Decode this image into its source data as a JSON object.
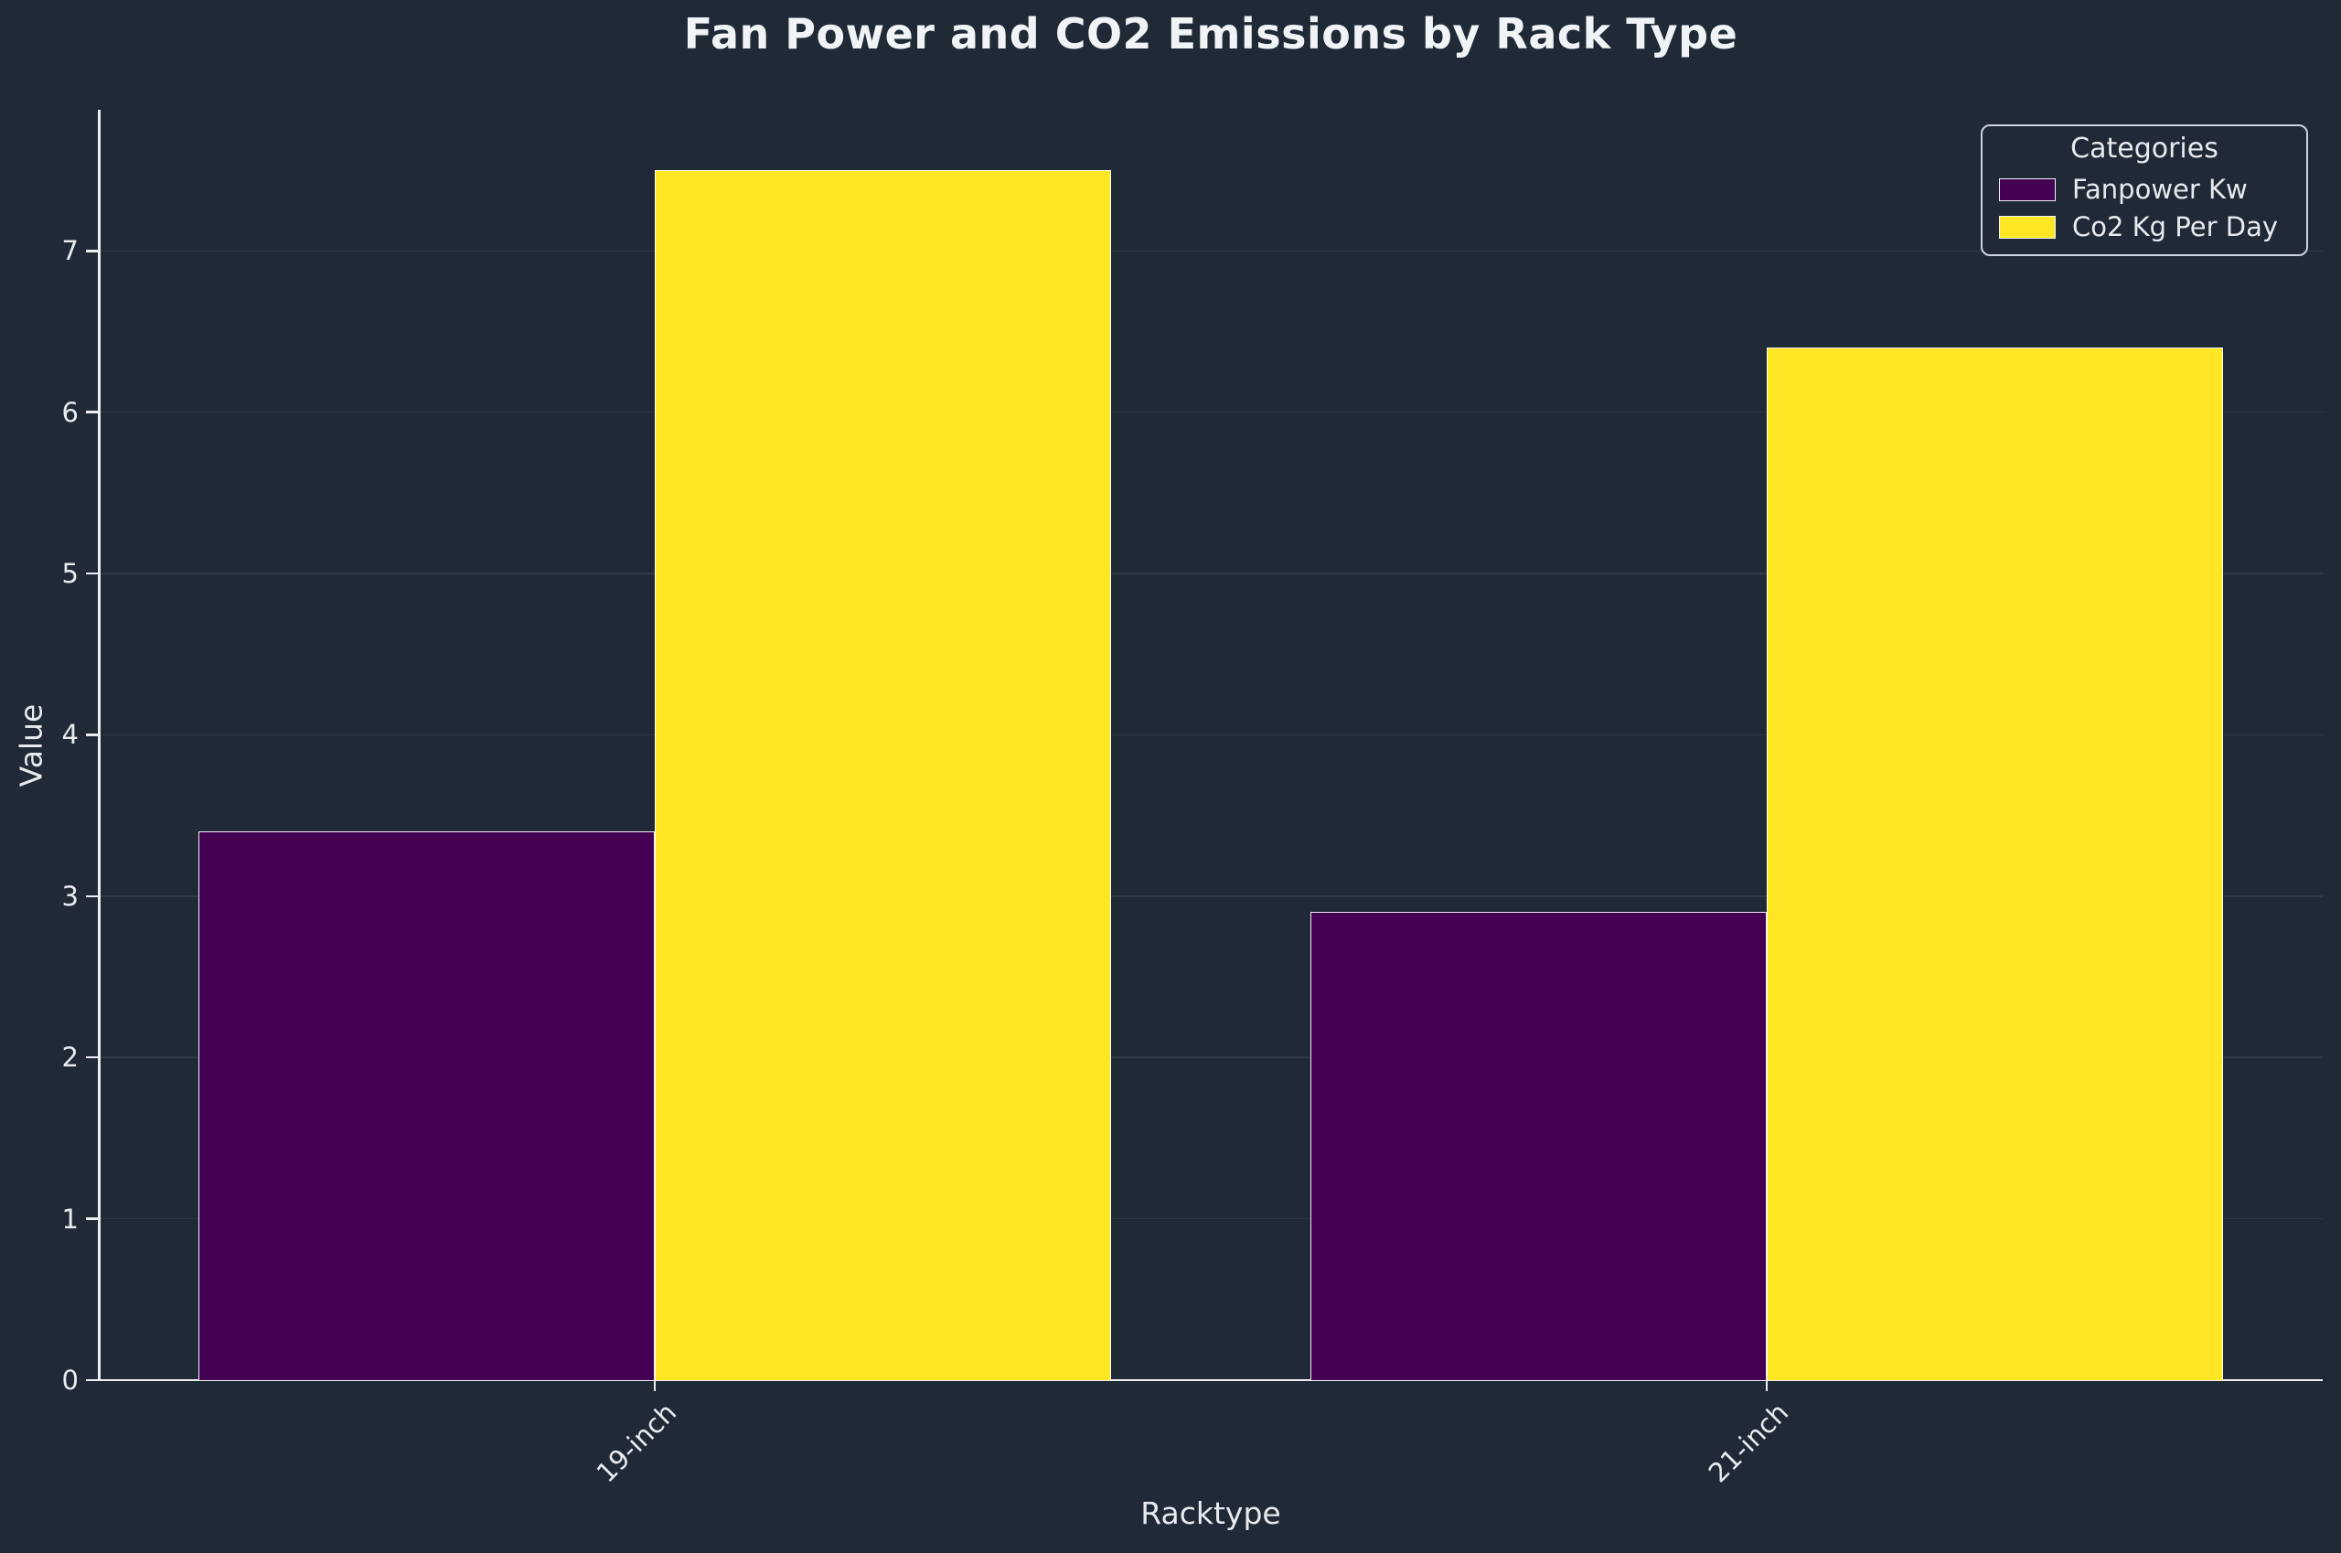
{
  "chart_data": {
    "type": "bar",
    "title": "Fan Power and CO2 Emissions by Rack Type",
    "xlabel": "Racktype",
    "ylabel": "Value",
    "categories": [
      "19-inch",
      "21-inch"
    ],
    "series": [
      {
        "name": "Fanpower Kw",
        "color": "#440154",
        "values": [
          3.4,
          2.9
        ]
      },
      {
        "name": "Co2 Kg Per Day",
        "color": "#fde725",
        "values": [
          7.5,
          6.4
        ]
      }
    ],
    "legend": {
      "title": "Categories",
      "position": "upper right"
    },
    "yticks": [
      0,
      1,
      2,
      3,
      4,
      5,
      6,
      7
    ],
    "ylim": [
      0,
      7.875
    ],
    "xlim": [
      -0.5,
      1.5
    ],
    "bar_width": 0.41,
    "grid": "horizontal",
    "colors": {
      "background": "#1f2a36",
      "text": "#e7ebef",
      "title_text": "#f1f4f7",
      "spine": "#eceff2",
      "bar_edge": "#ffffff",
      "legend_border": "#ccd3da",
      "gridline": "rgba(255,255,255,0.08)"
    }
  }
}
